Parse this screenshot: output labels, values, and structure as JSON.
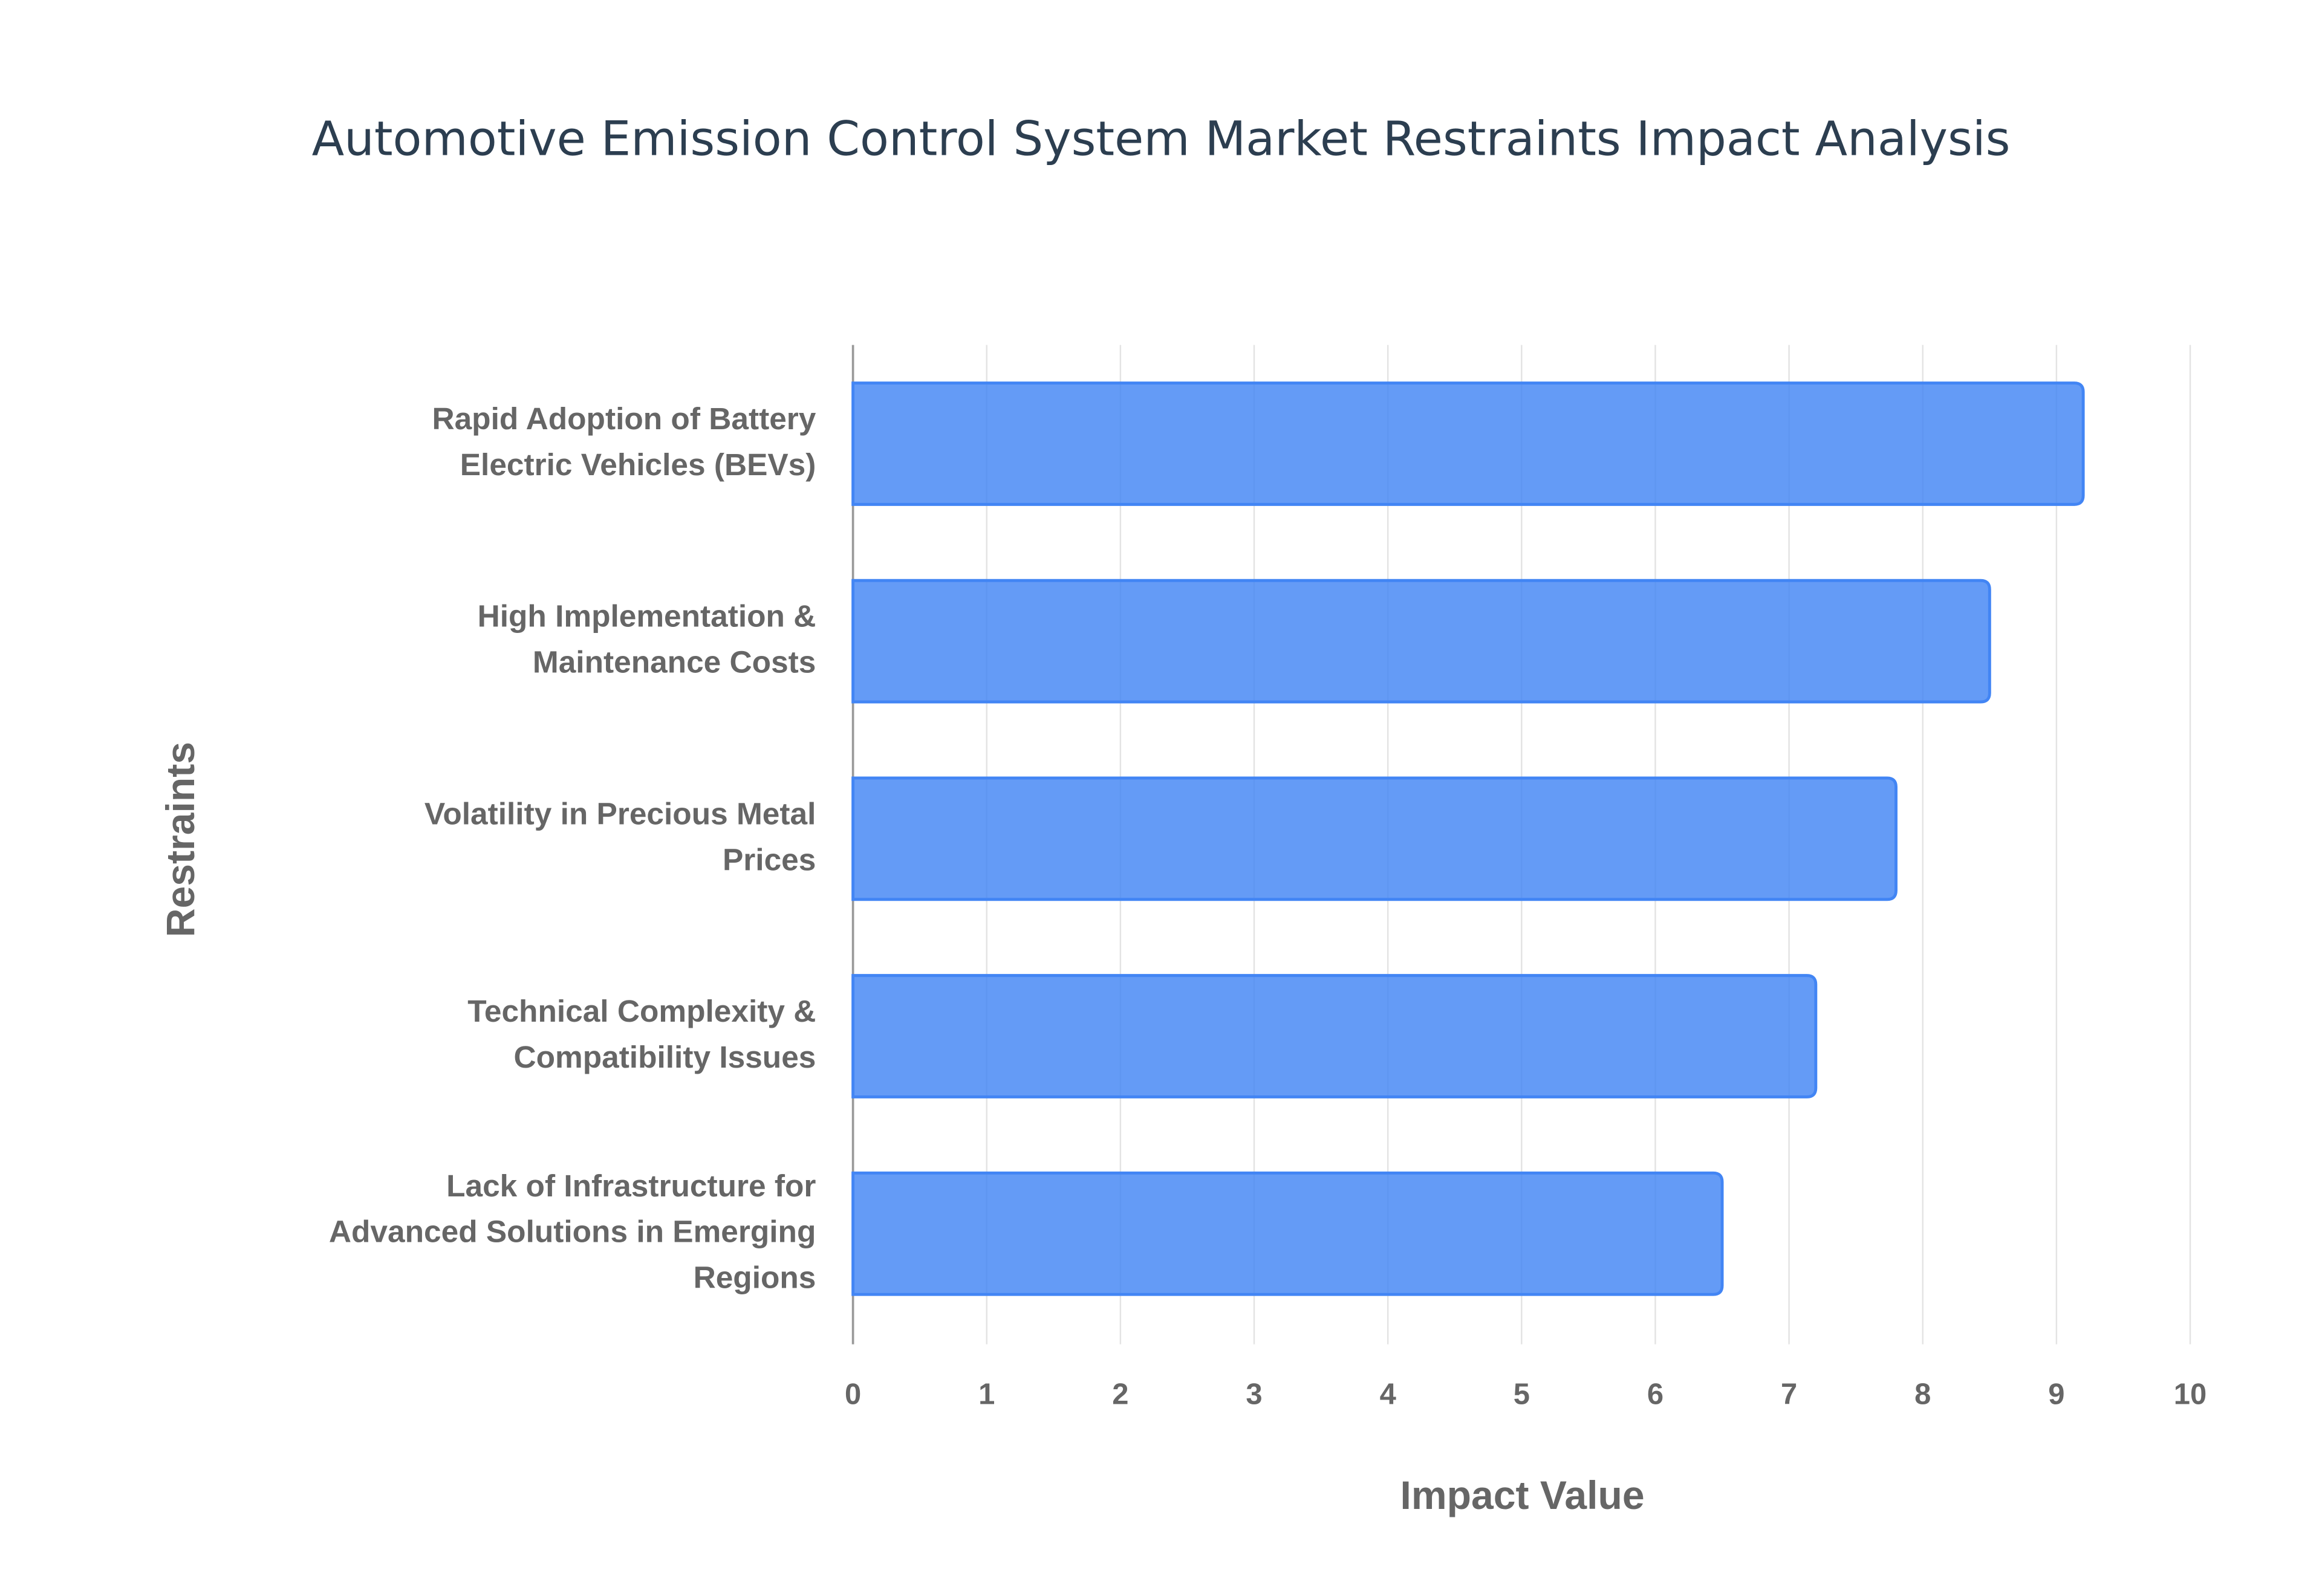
{
  "chart_data": {
    "type": "hbar",
    "title": "Automotive Emission Control System Market Restraints Impact Analysis",
    "categories": [
      "Rapid Adoption of Battery Electric Vehicles (BEVs)",
      "High Implementation & Maintenance Costs",
      "Volatility in Precious Metal Prices",
      "Technical Complexity & Compatibility Issues",
      "Lack of Infrastructure for Advanced Solutions in Emerging Regions"
    ],
    "values": [
      9.2,
      8.5,
      7.8,
      7.2,
      6.5
    ],
    "color": "#4285f4",
    "xlabel": "Impact Value",
    "ylabel": "Restraints",
    "xlim": [
      0,
      10
    ],
    "xticks": [
      0,
      1,
      2,
      3,
      4,
      5,
      6,
      7,
      8,
      9,
      10
    ],
    "grid": true
  }
}
